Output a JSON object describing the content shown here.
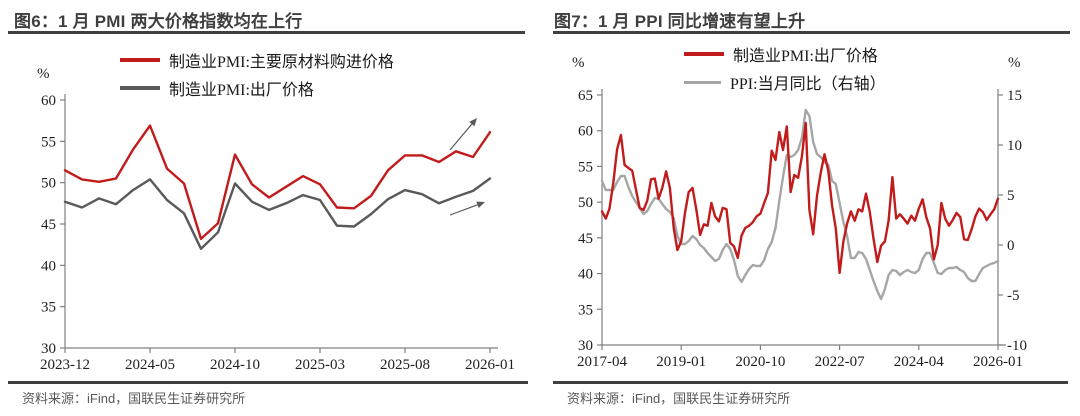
{
  "figure6": {
    "title": "图6：1 月 PMI 两大价格指数均在上行",
    "unit_left": "%",
    "source": "资料来源：iFind，国联民生证券研究所"
  },
  "figure7": {
    "title": "图7：1 月 PPI 同比增速有望上升",
    "unit_left": "%",
    "unit_right": "%",
    "source": "资料来源：iFind，国联民生证券研究所"
  },
  "colors": {
    "red_line": "#C21B1B",
    "dark_gray_line": "#595959",
    "light_gray_line": "#A6A6A6",
    "axis": "#808080",
    "title_text": "#3F3F3F",
    "rule": "#404040",
    "source_text": "#595959"
  },
  "chart_data": [
    {
      "type": "line",
      "title": "图6：1 月 PMI 两大价格指数均在上行",
      "x_start": "2023-12",
      "x_end": "2026-01",
      "x_freq": "monthly",
      "xticks": [
        "2023-12",
        "2024-05",
        "2024-10",
        "2025-03",
        "2025-08",
        "2026-01"
      ],
      "ylabel_left": "%",
      "ylim_left": [
        30,
        60
      ],
      "yticks_left": [
        30,
        35,
        40,
        45,
        50,
        55,
        60
      ],
      "grid": false,
      "legend_position": "top",
      "series": [
        {
          "name": "制造业PMI:主要原材料购进价格",
          "color": "#C21B1B",
          "axis": "left",
          "values": [
            51.5,
            50.4,
            50.1,
            50.5,
            54.0,
            56.9,
            51.7,
            49.9,
            43.2,
            45.1,
            53.4,
            49.8,
            48.2,
            49.5,
            50.8,
            49.8,
            47.0,
            46.9,
            48.4,
            51.5,
            53.3,
            53.3,
            52.5,
            53.8,
            53.1,
            56.1
          ]
        },
        {
          "name": "制造业PMI:出厂价格",
          "color": "#595959",
          "axis": "left",
          "values": [
            47.7,
            47.0,
            48.1,
            47.4,
            49.1,
            50.4,
            47.9,
            46.3,
            42.0,
            44.0,
            49.9,
            47.7,
            46.7,
            47.5,
            48.5,
            47.9,
            44.8,
            44.7,
            46.2,
            48.0,
            49.1,
            48.6,
            47.5,
            48.3,
            49.0,
            50.5
          ]
        }
      ],
      "annotations": [
        {
          "shape": "arrow",
          "meaning": "rising-trend of purchasing price line",
          "from": [
            450,
            150
          ],
          "to": [
            477,
            118
          ]
        },
        {
          "shape": "arrow",
          "meaning": "rising-trend of factory-gate price line",
          "from": [
            450,
            215
          ],
          "to": [
            485,
            202
          ]
        }
      ]
    },
    {
      "type": "line",
      "title": "图7：1 月 PPI 同比增速有望上升",
      "x_start": "2017-04",
      "x_end": "2026-01",
      "x_freq": "monthly",
      "xticks": [
        "2017-04",
        "2019-01",
        "2020-10",
        "2022-07",
        "2024-04",
        "2026-01"
      ],
      "ylabel_left": "%",
      "ylabel_right": "%",
      "ylim_left": [
        30,
        65
      ],
      "yticks_left": [
        30,
        35,
        40,
        45,
        50,
        55,
        60,
        65
      ],
      "ylim_right": [
        -10,
        15
      ],
      "yticks_right": [
        -10,
        -5,
        0,
        5,
        10,
        15
      ],
      "grid": false,
      "legend_position": "top",
      "series": [
        {
          "name": "制造业PMI:出厂价格",
          "color": "#C21B1B",
          "axis": "left",
          "values": [
            48.7,
            47.7,
            49.1,
            52.7,
            57.4,
            59.4,
            55.2,
            54.8,
            54.4,
            51.8,
            49.2,
            48.9,
            50.2,
            53.2,
            53.3,
            50.5,
            52.0,
            54.3,
            52.0,
            46.4,
            43.3,
            44.5,
            48.5,
            51.4,
            52.0,
            49.0,
            45.4,
            46.9,
            46.7,
            49.9,
            48.0,
            47.3,
            49.2,
            49.0,
            44.3,
            43.8,
            42.2,
            45.3,
            46.4,
            46.7,
            47.2,
            48.0,
            48.4,
            49.9,
            51.3,
            57.2,
            55.9,
            59.8,
            57.3,
            60.6,
            51.4,
            53.8,
            53.4,
            56.4,
            61.1,
            48.9,
            45.5,
            50.9,
            54.1,
            56.7,
            54.4,
            49.5,
            46.3,
            40.1,
            44.5,
            47.0,
            48.7,
            47.4,
            49.0,
            48.7,
            51.2,
            48.6,
            44.9,
            41.6,
            43.9,
            44.5,
            47.4,
            53.5,
            47.7,
            48.3,
            47.7,
            47.0,
            48.1,
            47.4,
            49.1,
            50.4,
            47.9,
            46.3,
            42.0,
            44.0,
            49.9,
            47.7,
            46.7,
            47.5,
            48.5,
            47.9,
            44.8,
            44.7,
            46.2,
            48.0,
            49.1,
            48.6,
            47.5,
            48.3,
            49.0,
            50.5
          ]
        },
        {
          "name": "PPI:当月同比（右轴）",
          "color": "#A6A6A6",
          "axis": "right",
          "values": [
            6.4,
            5.5,
            5.5,
            5.5,
            6.3,
            6.9,
            6.9,
            5.8,
            4.9,
            4.3,
            3.7,
            3.1,
            3.4,
            4.1,
            4.7,
            4.6,
            4.1,
            3.6,
            3.3,
            2.7,
            0.9,
            0.1,
            0.1,
            0.4,
            0.9,
            0.6,
            0.0,
            -0.3,
            -0.8,
            -1.2,
            -1.6,
            -1.4,
            -0.5,
            0.1,
            -0.4,
            -1.5,
            -3.1,
            -3.7,
            -3.0,
            -2.4,
            -2.0,
            -2.1,
            -2.1,
            -1.5,
            -0.4,
            0.3,
            1.7,
            4.4,
            6.8,
            9.0,
            8.8,
            9.0,
            9.5,
            10.7,
            13.5,
            12.9,
            10.3,
            9.1,
            8.8,
            8.3,
            8.0,
            6.4,
            6.1,
            4.2,
            2.3,
            0.9,
            -1.3,
            -1.3,
            -0.7,
            -0.8,
            -1.4,
            -2.5,
            -3.6,
            -4.6,
            -5.4,
            -4.4,
            -3.0,
            -2.5,
            -2.6,
            -3.0,
            -2.7,
            -2.5,
            -2.7,
            -2.8,
            -2.5,
            -1.4,
            -0.8,
            -0.8,
            -1.8,
            -2.8,
            -2.9,
            -2.5,
            -2.3,
            -2.3,
            -2.2,
            -2.5,
            -2.7,
            -3.3,
            -3.6,
            -3.6,
            -2.9,
            -2.3,
            -2.1,
            -1.9,
            -1.8,
            -1.6
          ]
        }
      ]
    }
  ]
}
